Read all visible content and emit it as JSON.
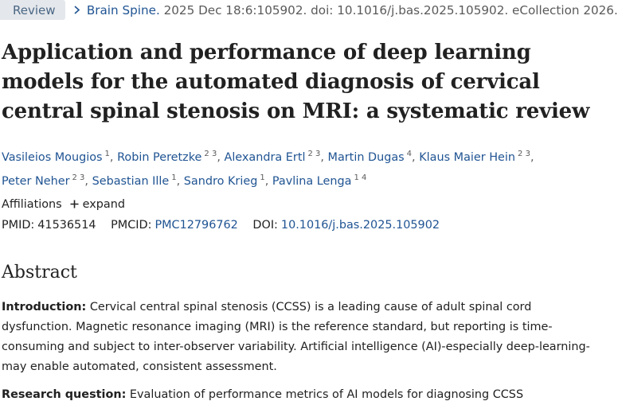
{
  "header": {
    "article_type": "Review",
    "journal": "Brain Spine.",
    "citation": "2025 Dec 18:6:105902. doi: 10.1016/j.bas.2025.105902. eCollection 2026."
  },
  "title": "Application and performance of deep learning models for the automated diagnosis of cervical central spinal stenosis on MRI: a systematic review",
  "authors": [
    {
      "name": "Vasileios Mougios",
      "aff": "1"
    },
    {
      "name": "Robin Peretzke",
      "aff": "2 3"
    },
    {
      "name": "Alexandra Ertl",
      "aff": "2 3"
    },
    {
      "name": "Martin Dugas",
      "aff": "4"
    },
    {
      "name": "Klaus Maier Hein",
      "aff": "2 3"
    },
    {
      "name": "Peter Neher",
      "aff": "2 3"
    },
    {
      "name": "Sebastian Ille",
      "aff": "1"
    },
    {
      "name": "Sandro Krieg",
      "aff": "1"
    },
    {
      "name": "Pavlina Lenga",
      "aff": "1 4"
    }
  ],
  "affiliations": {
    "label": "Affiliations",
    "expand": "expand"
  },
  "identifiers": {
    "pmid_label": "PMID:",
    "pmid": "41536514",
    "pmcid_label": "PMCID:",
    "pmcid": "PMC12796762",
    "doi_label": "DOI:",
    "doi": "10.1016/j.bas.2025.105902"
  },
  "abstract": {
    "heading": "Abstract",
    "intro_label": "Introduction:",
    "intro_text": "Cervical central spinal stenosis (CCSS) is a leading cause of adult spinal cord dysfunction. Magnetic resonance imaging (MRI) is the reference standard, but reporting is time-consuming and subject to inter-observer variability. Artificial intelligence (AI)-especially deep-learning-may enable automated, consistent assessment.",
    "rq_label": "Research question:",
    "rq_text": "Evaluation of performance metrics of AI models for diagnosing CCSS"
  },
  "icons": {
    "chevron": "chevron-right-icon",
    "plus": "plus-icon"
  }
}
